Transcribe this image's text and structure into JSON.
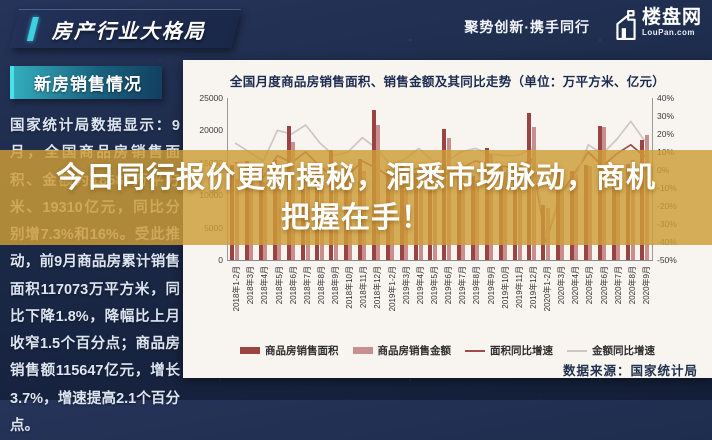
{
  "header": {
    "banner_title": "房产行业大格局",
    "tagline": "聚势创新·携手同行",
    "logo": {
      "name": "楼盘网",
      "domain": "LouPan.com"
    }
  },
  "sidebar": {
    "title": "新房销售情况",
    "paragraph": "国家统计局数据显示：9月，全国商品房销售面积、金额为18587万平方米、19310亿元，同比分别增7.3%和16%。受此推动，前9月商品房累计销售面积117073万平方米，同比下降1.8%，降幅比上月收窄1.5个百分点；商品房销售额115647亿元，增长3.7%，增速提高2.1个百分点。"
  },
  "overlay": {
    "line1": "今日同行报价更新揭秘，洞悉市场脉动，商机",
    "line2": "把握在手！",
    "band_color": "#ce9c37"
  },
  "chart": {
    "source": "数据来源：国家统计局"
  },
  "chart_data": {
    "type": "bar",
    "subtype": "combo bar+line, dual axis",
    "title": "全国月度商品房销售面积、销售金额及其同比走势（单位：万平方米、亿元）",
    "categories": [
      "2018年1-2月",
      "2018年3月",
      "2018年4月",
      "2018年5月",
      "2018年6月",
      "2018年7月",
      "2018年8月",
      "2018年9月",
      "2018年10月",
      "2018年11月",
      "2018年12月",
      "2019年1-2月",
      "2019年3月",
      "2019年4月",
      "2019年5月",
      "2019年6月",
      "2019年7月",
      "2019年8月",
      "2019年9月",
      "2019年10月",
      "2019年11月",
      "2019年12月",
      "2020年1-2月",
      "2020年3月",
      "2020年4月",
      "2020年5月",
      "2020年6月",
      "2020年7月",
      "2020年8月",
      "2020年9月"
    ],
    "series": [
      {
        "name": "商品房销售面积",
        "type": "bar",
        "axis": "left",
        "color": "#9a4343",
        "values": [
          14600,
          15300,
          14000,
          15500,
          20700,
          14000,
          14400,
          17000,
          14700,
          15600,
          23100,
          14100,
          14900,
          13500,
          14500,
          20300,
          13200,
          13000,
          17300,
          14300,
          15000,
          22700,
          8500,
          13700,
          13700,
          14700,
          20700,
          13800,
          14800,
          18587
        ]
      },
      {
        "name": "商品房销售金额",
        "type": "bar",
        "axis": "left",
        "color": "#c98e8e",
        "values": [
          12500,
          13000,
          12000,
          13200,
          18200,
          12200,
          12600,
          14700,
          12900,
          13700,
          20900,
          12400,
          13200,
          12600,
          13500,
          18800,
          12500,
          12300,
          16400,
          13600,
          14300,
          20600,
          8100,
          13000,
          13100,
          14500,
          20500,
          13900,
          15500,
          19310
        ]
      },
      {
        "name": "面积同比增速",
        "type": "line",
        "axis": "right",
        "color": "#a14a4a",
        "values": [
          4,
          3,
          -4,
          8,
          4,
          10,
          2,
          -4,
          -3,
          5,
          1,
          -4,
          -1,
          1,
          -6,
          -2,
          1,
          5,
          3,
          2,
          1,
          6,
          -40,
          -14,
          -2,
          10,
          2,
          9,
          14,
          7.3
        ]
      },
      {
        "name": "金额同比增速",
        "type": "line",
        "axis": "right",
        "color": "#cfc5c5",
        "values": [
          15,
          10,
          5,
          22,
          20,
          25,
          15,
          8,
          10,
          18,
          12,
          3,
          6,
          12,
          5,
          5,
          10,
          12,
          9,
          8,
          8,
          12,
          -38,
          -14,
          -5,
          14,
          9,
          17,
          27,
          16
        ]
      }
    ],
    "left_axis": {
      "min": 0,
      "max": 25000,
      "ticks": [
        0,
        5000,
        10000,
        15000,
        20000,
        25000
      ]
    },
    "right_axis": {
      "min": -50,
      "max": 40,
      "ticks_percent": [
        40,
        30,
        20,
        10,
        0,
        -10,
        -20,
        -30,
        -40,
        -50
      ]
    },
    "legend_position": "bottom",
    "grid": false
  }
}
